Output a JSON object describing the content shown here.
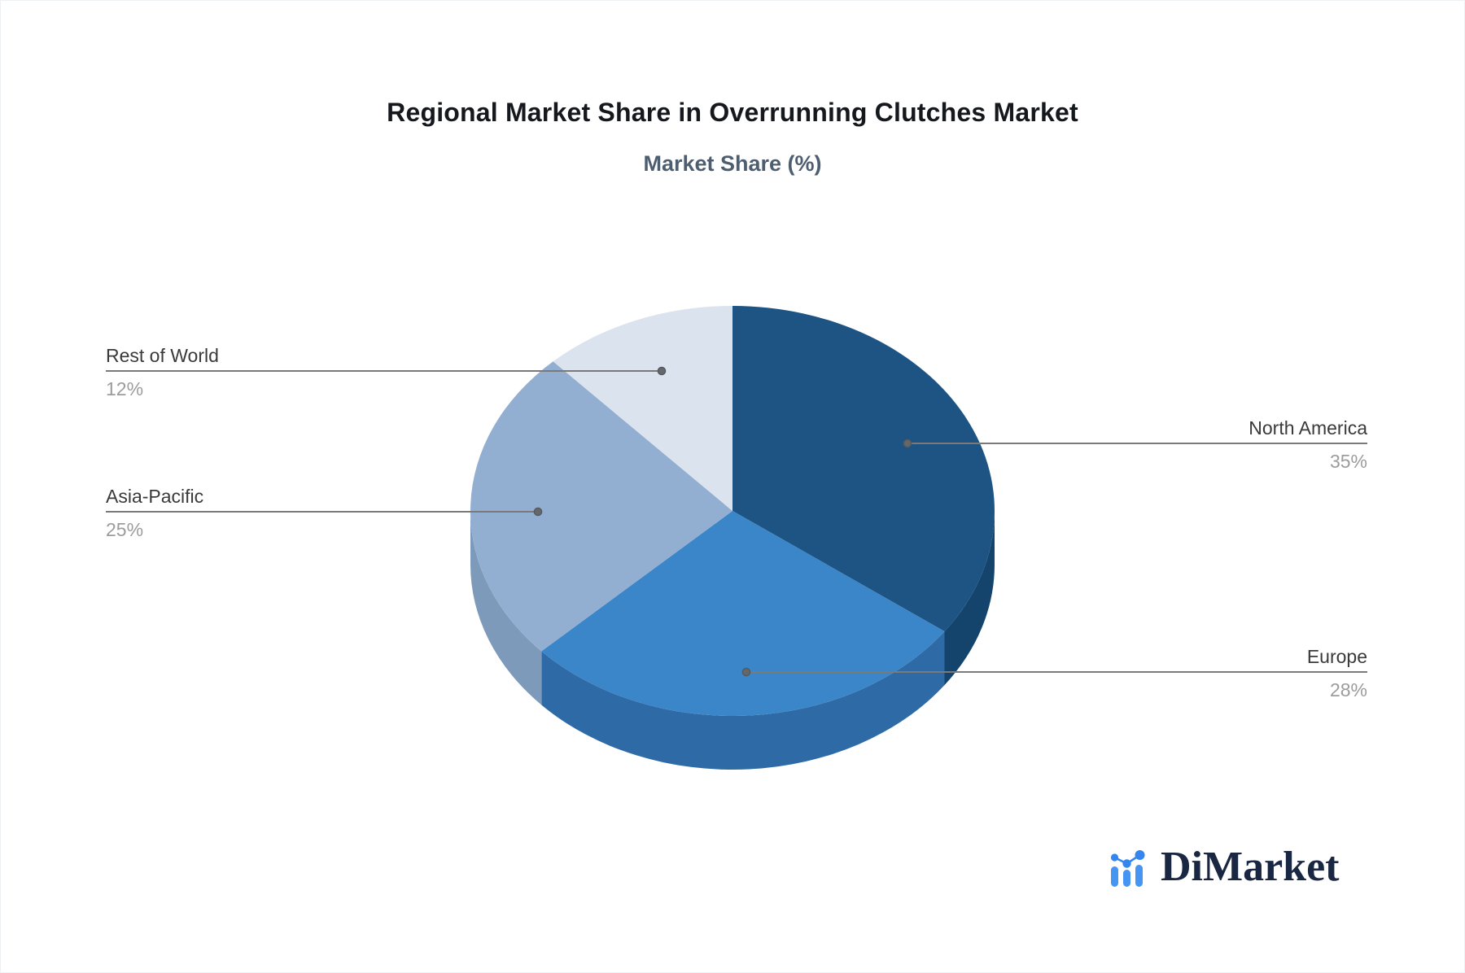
{
  "header": {
    "title": "Regional Market Share in Overrunning Clutches Market",
    "subtitle": "Market Share (%)"
  },
  "chart_data": {
    "type": "pie",
    "style": "3d",
    "title": "Regional Market Share in Overrunning Clutches Market",
    "subtitle": "Market Share (%)",
    "unit": "%",
    "start_angle_deg": 0,
    "direction": "clockwise",
    "slices": [
      {
        "label": "North America",
        "value": 35,
        "display": "35%",
        "color": "#1d5484",
        "side_color": "#14436b"
      },
      {
        "label": "Europe",
        "value": 28,
        "display": "28%",
        "color": "#3a86c8",
        "side_color": "#2e6ba6"
      },
      {
        "label": "Asia-Pacific",
        "value": 25,
        "display": "25%",
        "color": "#92afd2",
        "side_color": "#7e9aba"
      },
      {
        "label": "Rest of World",
        "value": 12,
        "display": "12%",
        "color": "#dbe3ef",
        "side_color": "#b9c5d8"
      }
    ],
    "legend_position": "callout-labels",
    "connector_color": "#7a7a7a",
    "connector_dot_color": "#63686c",
    "label_color": "#3a3a3a",
    "percent_color": "#9c9c9c",
    "background": "#ffffff"
  },
  "branding": {
    "name": "DiMarket",
    "icon": "bar-line-chart-icon",
    "text_color": "#1a2742",
    "icon_color": "#4695f2"
  }
}
